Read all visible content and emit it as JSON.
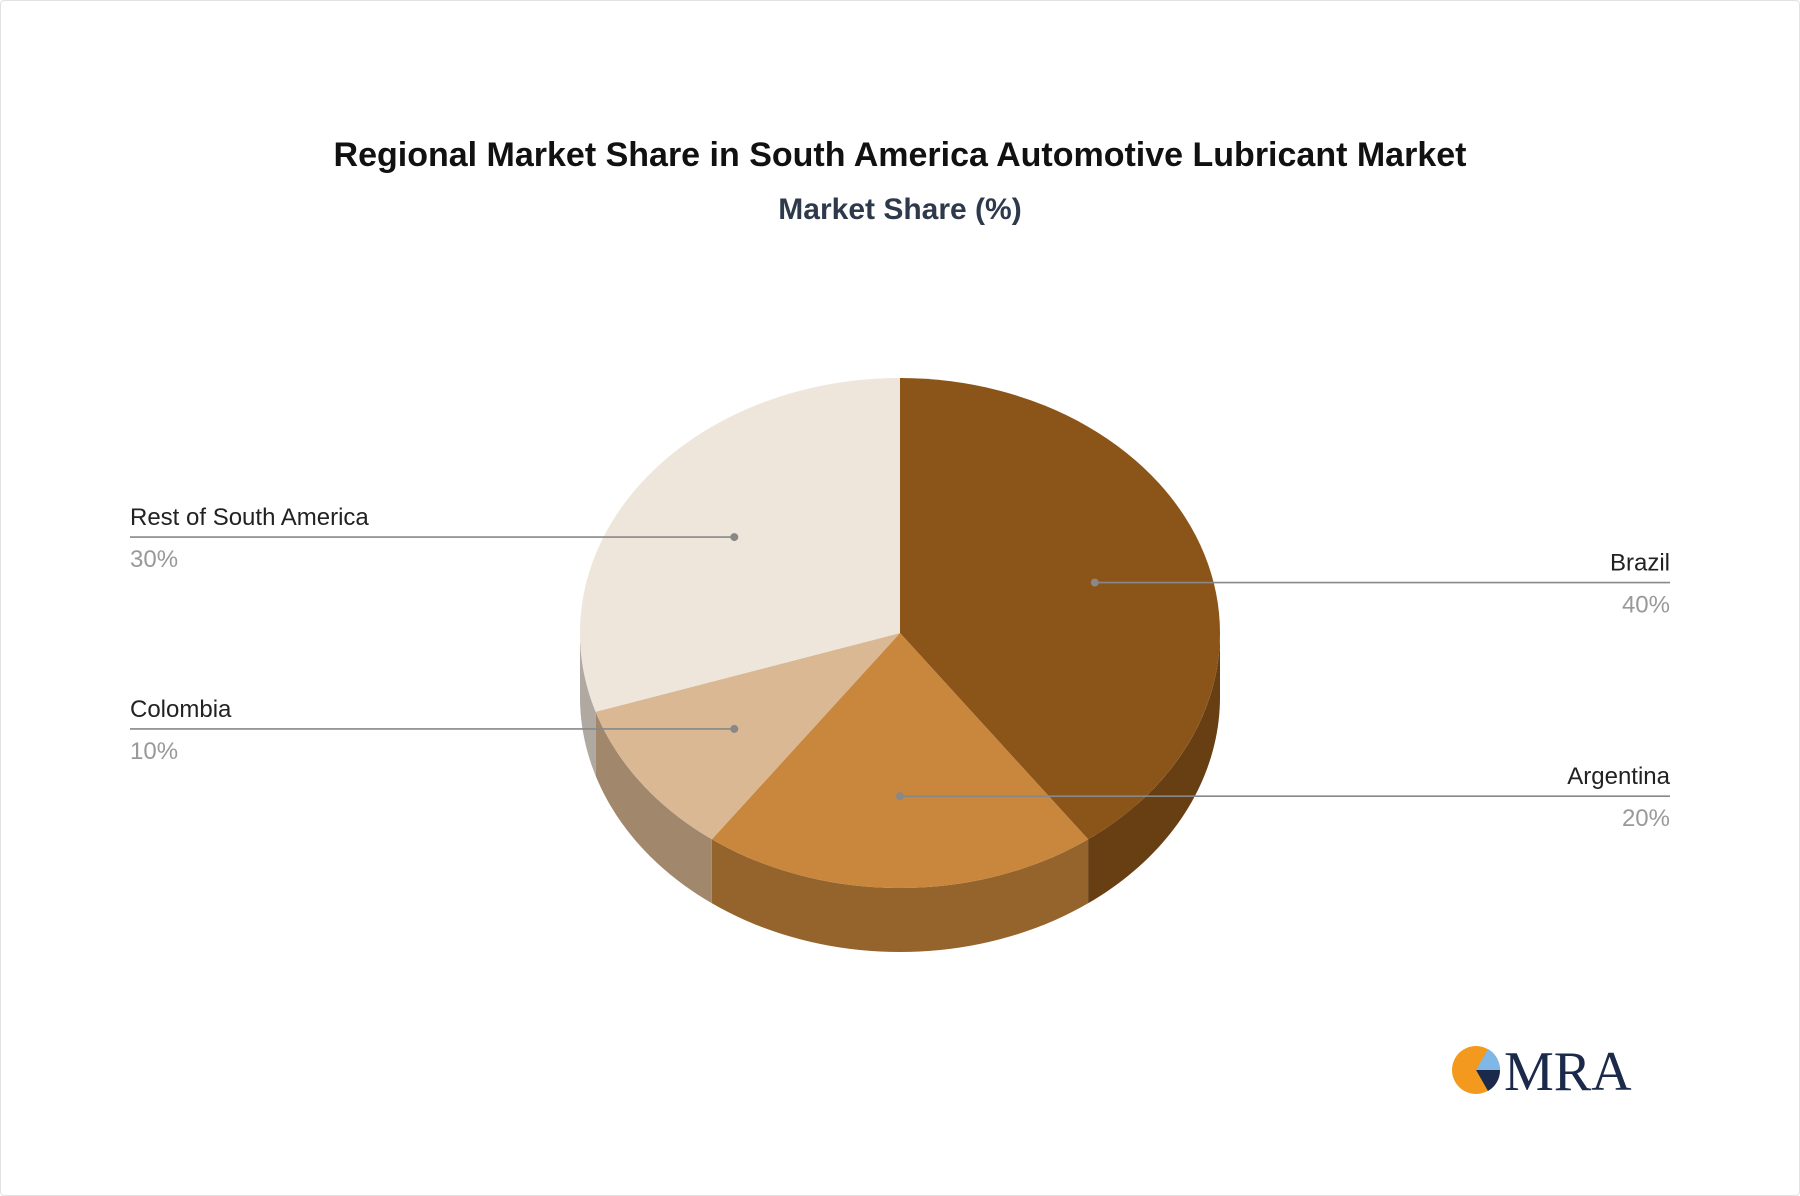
{
  "chart_data": {
    "type": "pie",
    "title": "Regional Market Share in South America Automotive Lubricant Market",
    "subtitle": "Market Share (%)",
    "slices": [
      {
        "label": "Brazil",
        "value": 40,
        "value_label": "40%",
        "color": "#8B5519"
      },
      {
        "label": "Argentina",
        "value": 20,
        "value_label": "20%",
        "color": "#C8873C"
      },
      {
        "label": "Colombia",
        "value": 10,
        "value_label": "10%",
        "color": "#D9B893"
      },
      {
        "label": "Rest of South America",
        "value": 30,
        "value_label": "30%",
        "color": "#EEE5DB"
      }
    ],
    "style": "3d-pie"
  },
  "logo": {
    "text": "MRA",
    "brand_color": "#F39A1E",
    "accent_color": "#1B2A4A"
  },
  "colors": {
    "label_text": "#222222",
    "value_text": "#999999",
    "leader_line": "#888888"
  }
}
